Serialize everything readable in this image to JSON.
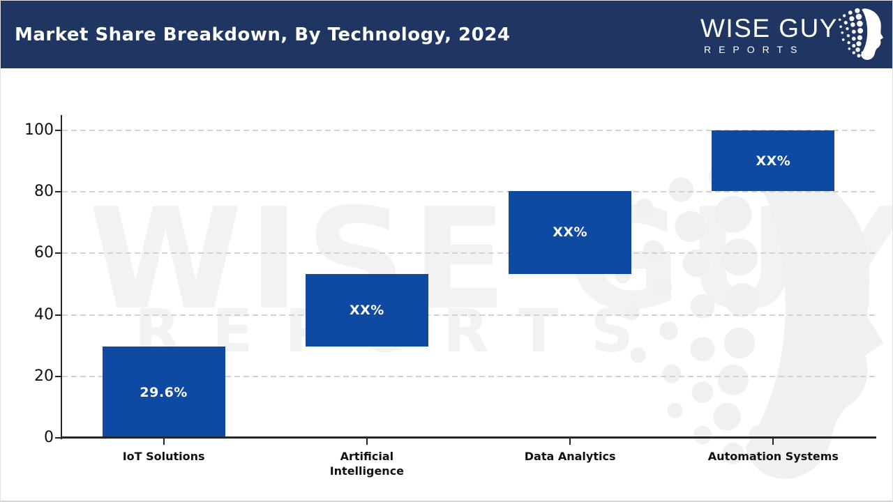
{
  "header": {
    "title": "Market Share Breakdown, By Technology, 2024",
    "logo": {
      "name": "WISE GUY",
      "sub": "REPORTS"
    }
  },
  "watermark": {
    "name": "WISE GUY",
    "sub": "REPORTS"
  },
  "chart_data": {
    "type": "bar",
    "variant": "waterfall",
    "title": "Market Share Breakdown, By Technology, 2024",
    "categories": [
      "IoT Solutions",
      "Artificial\nIntelligence",
      "Data Analytics",
      "Automation Systems"
    ],
    "segments": [
      {
        "category": "IoT Solutions",
        "start": 0,
        "end": 29.6,
        "label": "29.6%"
      },
      {
        "category": "Artificial Intelligence",
        "start": 29.6,
        "end": 53.4,
        "label": "XX%"
      },
      {
        "category": "Data Analytics",
        "start": 53.4,
        "end": 80.2,
        "label": "XX%"
      },
      {
        "category": "Automation Systems",
        "start": 80.2,
        "end": 100,
        "label": "XX%"
      }
    ],
    "xlabel": "",
    "ylabel": "",
    "yticks": [
      0,
      20,
      40,
      60,
      80,
      100
    ],
    "ylim": [
      0,
      105
    ],
    "grid": "horizontal-dashed",
    "legend": "none",
    "bar_color": "#0e4aa1",
    "bar_label_color": "#ffffff",
    "axis_color": "#262626",
    "grid_color": "#d2d2d2",
    "header_color": "#1f3663",
    "watermark_color": "#f2f2f2"
  }
}
